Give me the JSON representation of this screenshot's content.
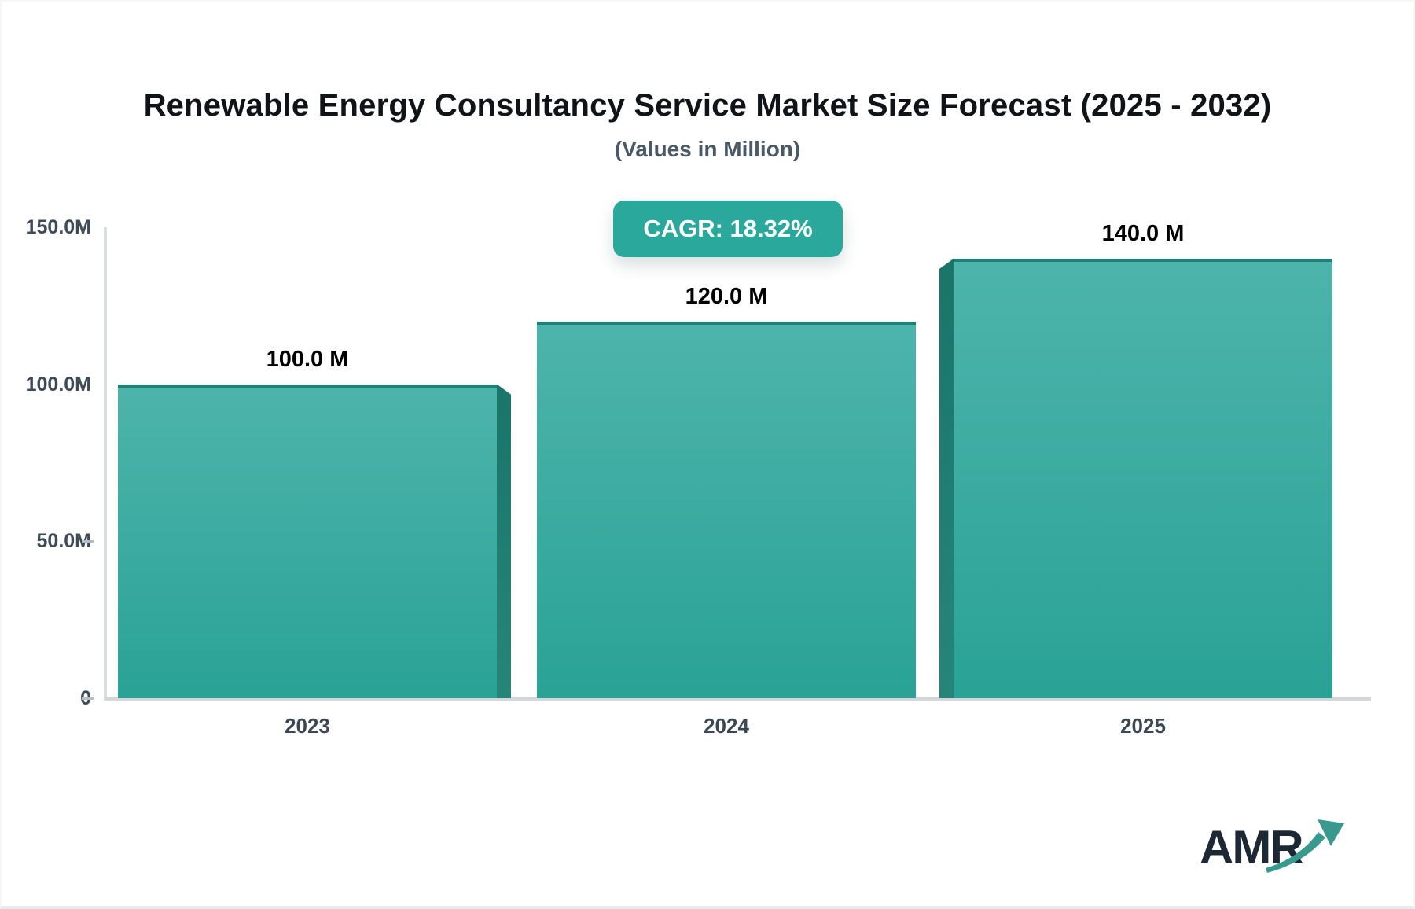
{
  "header": {
    "title": "Renewable Energy Consultancy Service Market Size Forecast (2025 - 2032)",
    "subtitle": "(Values in Million)"
  },
  "badge": {
    "label": "CAGR: 18.32%"
  },
  "logo": {
    "text": "AMR",
    "arrow_icon": "trend-up-arrow"
  },
  "chart_data": {
    "type": "bar",
    "title": "Renewable Energy Consultancy Service Market Size Forecast (2025 - 2032)",
    "subtitle": "(Values in Million)",
    "categories": [
      "2023",
      "2024",
      "2025"
    ],
    "values": [
      100,
      120,
      140
    ],
    "value_labels": [
      "100.0 M",
      "120.0 M",
      "140.0 M"
    ],
    "unit": "Million",
    "xlabel": "",
    "ylabel": "",
    "ylim": [
      0,
      150
    ],
    "y_ticks": [
      {
        "value": 150,
        "label": "150.0M",
        "dash": false
      },
      {
        "value": 100,
        "label": "100.0M",
        "dash": false
      },
      {
        "value": 50,
        "label": "50.0M",
        "dash": true
      },
      {
        "value": 0,
        "label": "0",
        "dash": true
      }
    ],
    "grid": false,
    "legend": false,
    "annotations": [
      "CAGR: 18.32%"
    ],
    "bar_3d_sides": [
      "right",
      "none",
      "left"
    ]
  },
  "colors": {
    "bar_gradient_top": "#4db4ab",
    "bar_gradient_bottom": "#2aa296",
    "bar_top_border": "#1f8176",
    "bar_side_top": "#1a7569",
    "bar_side_bottom": "#268579",
    "badge_background": "#2aa89b",
    "axis_line": "#d6d9de",
    "tick_text": "#3d4a57",
    "title_text": "#101418",
    "subtitle_text": "#4a5968",
    "logo_navy": "#1c2833",
    "logo_teal": "#38998e"
  }
}
